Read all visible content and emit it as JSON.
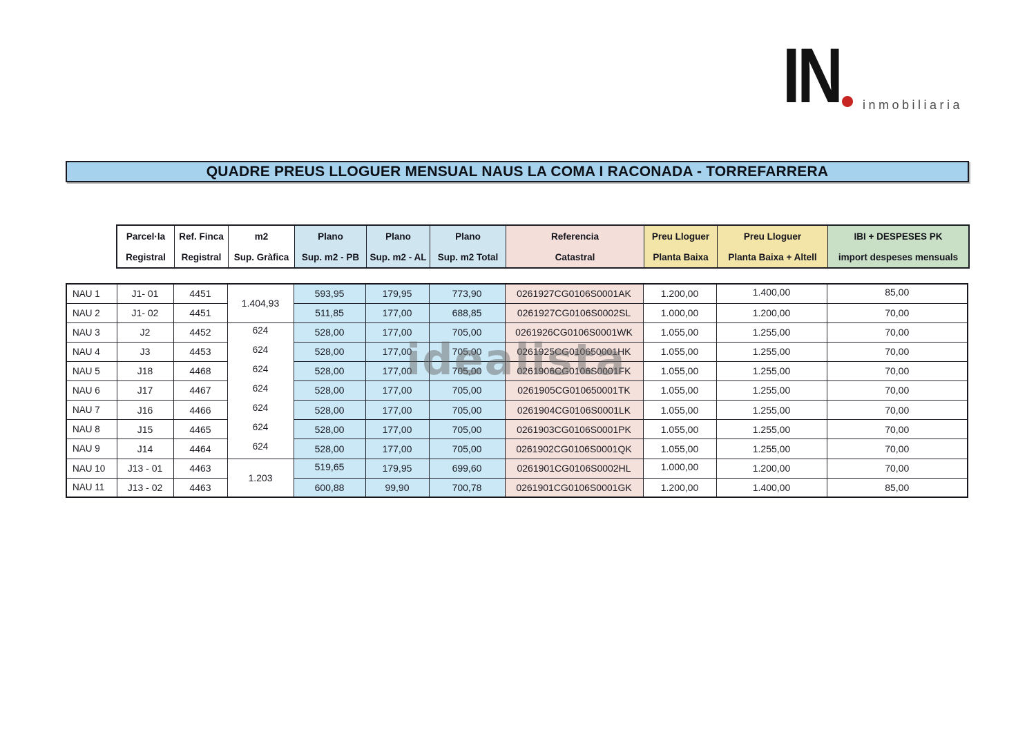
{
  "logo": {
    "text": "IN",
    "subtext": "inmobiliaria"
  },
  "title": "QUADRE PREUS LLOGUER MENSUAL NAUS LA COMA I RACONADA - TORREFARRERA",
  "watermark": "idealista",
  "colors": {
    "title_bg": "#a7d2ed",
    "header_blue": "#cfe5f0",
    "header_pink": "#f3ded9",
    "header_yellow": "#f3e5a7",
    "header_green": "#c9dfc6",
    "data_blue": "#cbe8f6",
    "data_pink": "#f4e1dc",
    "logo_dot": "#c72522"
  },
  "header": {
    "cols": [
      {
        "line1": "Parcel·la",
        "line2": "Registral"
      },
      {
        "line1": "Ref. Finca",
        "line2": "Registral"
      },
      {
        "line1": "m2",
        "line2": "Sup. Gràfica"
      },
      {
        "line1": "Plano",
        "line2": "Sup. m2 - PB"
      },
      {
        "line1": "Plano",
        "line2": "Sup. m2 - AL"
      },
      {
        "line1": "Plano",
        "line2": "Sup. m2 Total"
      },
      {
        "line1": "Referencia",
        "line2": "Catastral"
      },
      {
        "line1": "Preu Lloguer",
        "line2": "Planta Baixa"
      },
      {
        "line1": "Preu Lloguer",
        "line2": "Planta Baixa + Altell"
      },
      {
        "line1": "IBI + DESPESES PK",
        "line2": "import despeses mensuals"
      }
    ]
  },
  "table": {
    "m2_groups": [
      {
        "start": 0,
        "span": 2,
        "value": "1.404,93"
      },
      {
        "start": 2,
        "span": 7,
        "stacked": [
          "624",
          "624",
          "624",
          "624",
          "624",
          "624",
          "624"
        ]
      },
      {
        "start": 9,
        "span": 2,
        "value": "1.203"
      }
    ],
    "rows": [
      {
        "nau": "NAU 1",
        "parcella": "J1- 01",
        "ref_finca": "4451",
        "plano_pb": "593,95",
        "plano_al": "179,95",
        "plano_total": "773,90",
        "catastral": "0261927CG0106S0001AK",
        "preu_pb": "1.200,00",
        "preu_alt": "1.400,00",
        "ibi": "85,00",
        "raised": [
          "preu_alt",
          "ibi"
        ]
      },
      {
        "nau": "NAU 2",
        "parcella": "J1- 02",
        "ref_finca": "4451",
        "plano_pb": "511,85",
        "plano_al": "177,00",
        "plano_total": "688,85",
        "catastral": "0261927CG0106S0002SL",
        "preu_pb": "1.000,00",
        "preu_alt": "1.200,00",
        "ibi": "70,00",
        "raised": []
      },
      {
        "nau": "NAU 3",
        "parcella": "J2",
        "ref_finca": "4452",
        "plano_pb": "528,00",
        "plano_al": "177,00",
        "plano_total": "705,00",
        "catastral": "0261926CG0106S0001WK",
        "preu_pb": "1.055,00",
        "preu_alt": "1.255,00",
        "ibi": "70,00",
        "raised": []
      },
      {
        "nau": "NAU 4",
        "parcella": "J3",
        "ref_finca": "4453",
        "plano_pb": "528,00",
        "plano_al": "177,00",
        "plano_total": "705,00",
        "catastral": "0261925CG010650001HK",
        "preu_pb": "1.055,00",
        "preu_alt": "1.255,00",
        "ibi": "70,00",
        "raised": []
      },
      {
        "nau": "NAU 5",
        "parcella": "J18",
        "ref_finca": "4468",
        "plano_pb": "528,00",
        "plano_al": "177,00",
        "plano_total": "705,00",
        "catastral": "0261906CG0106S0001FK",
        "preu_pb": "1.055,00",
        "preu_alt": "1.255,00",
        "ibi": "70,00",
        "raised": []
      },
      {
        "nau": "NAU 6",
        "parcella": "J17",
        "ref_finca": "4467",
        "plano_pb": "528,00",
        "plano_al": "177,00",
        "plano_total": "705,00",
        "catastral": "0261905CG010650001TK",
        "preu_pb": "1.055,00",
        "preu_alt": "1.255,00",
        "ibi": "70,00",
        "raised": []
      },
      {
        "nau": "NAU 7",
        "parcella": "J16",
        "ref_finca": "4466",
        "plano_pb": "528,00",
        "plano_al": "177,00",
        "plano_total": "705,00",
        "catastral": "0261904CG0106S0001LK",
        "preu_pb": "1.055,00",
        "preu_alt": "1.255,00",
        "ibi": "70,00",
        "raised": []
      },
      {
        "nau": "NAU 8",
        "parcella": "J15",
        "ref_finca": "4465",
        "plano_pb": "528,00",
        "plano_al": "177,00",
        "plano_total": "705,00",
        "catastral": "0261903CG0106S0001PK",
        "preu_pb": "1.055,00",
        "preu_alt": "1.255,00",
        "ibi": "70,00",
        "raised": []
      },
      {
        "nau": "NAU 9",
        "parcella": "J14",
        "ref_finca": "4464",
        "plano_pb": "528,00",
        "plano_al": "177,00",
        "plano_total": "705,00",
        "catastral": "0261902CG0106S0001QK",
        "preu_pb": "1.055,00",
        "preu_alt": "1.255,00",
        "ibi": "70,00",
        "raised": []
      },
      {
        "nau": "NAU 10",
        "parcella": "J13 - 01",
        "ref_finca": "4463",
        "plano_pb": "519,65",
        "plano_al": "179,95",
        "plano_total": "699,60",
        "catastral": "0261901CG0106S0002HL",
        "preu_pb": "1.000,00",
        "preu_alt": "1.200,00",
        "ibi": "70,00",
        "raised": [
          "plano_pb",
          "preu_pb"
        ]
      },
      {
        "nau": "NAU 11",
        "parcella": "J13 - 02",
        "ref_finca": "4463",
        "plano_pb": "600,88",
        "plano_al": "99,90",
        "plano_total": "700,78",
        "catastral": "0261901CG0106S0001GK",
        "preu_pb": "1.200,00",
        "preu_alt": "1.400,00",
        "ibi": "85,00",
        "raised": []
      }
    ]
  }
}
